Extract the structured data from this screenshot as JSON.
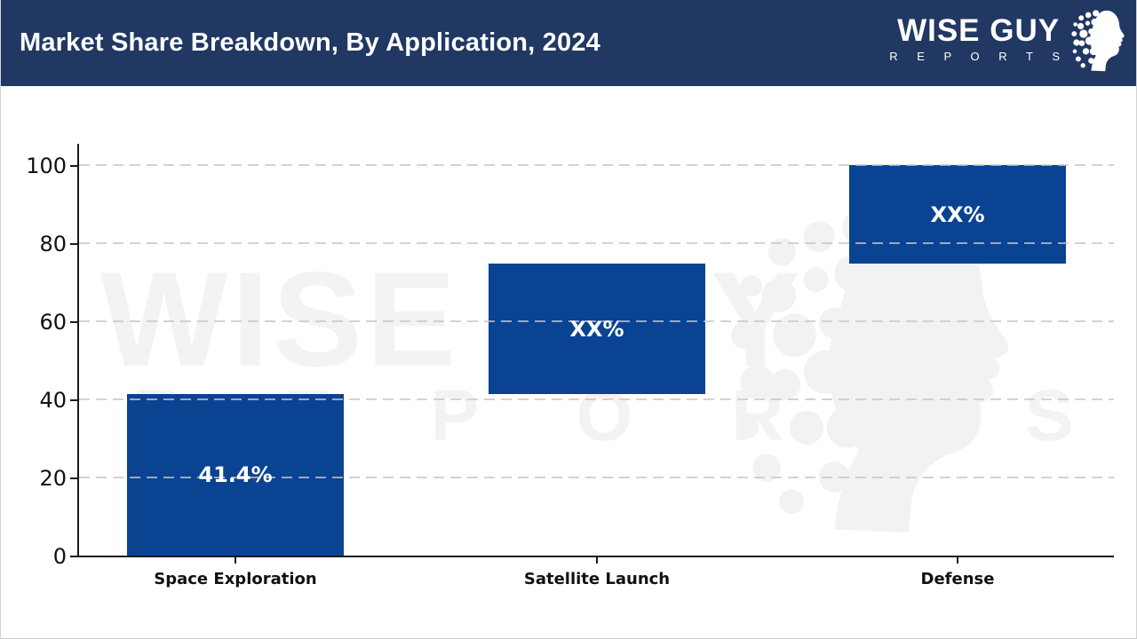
{
  "header": {
    "title": "Market Share Breakdown, By Application, 2024",
    "background": "#203862",
    "logo": {
      "wordmark": "WISE GUY",
      "subtext": "R E P O R T S",
      "icon": "dotted-face-profile-icon"
    }
  },
  "watermark": {
    "wordmark": "WISE GUY",
    "subtext": "R E P O R T S",
    "icon": "dotted-face-profile-icon"
  },
  "chart_data": {
    "type": "bar",
    "variant": "waterfall",
    "title": "Market Share Breakdown, By Application, 2024",
    "categories": [
      "Space Exploration",
      "Satellite Launch",
      "Defense"
    ],
    "segments": [
      {
        "category": "Space Exploration",
        "start": 0,
        "end": 41.4,
        "label": "41.4%"
      },
      {
        "category": "Satellite Launch",
        "start": 41.4,
        "end": 74.7,
        "label": "XX%"
      },
      {
        "category": "Defense",
        "start": 74.7,
        "end": 100,
        "label": "XX%"
      }
    ],
    "bar_color": "#0a4392",
    "label_color": "#ffffff",
    "yticks": [
      0,
      20,
      40,
      60,
      80,
      100
    ],
    "ylim": [
      0,
      105
    ],
    "grid": {
      "show": true,
      "style": "dashed",
      "color": "#c6c6c6",
      "drawn_over_bars": true
    },
    "axis_color": "#1a1a1a",
    "legend": "none"
  }
}
